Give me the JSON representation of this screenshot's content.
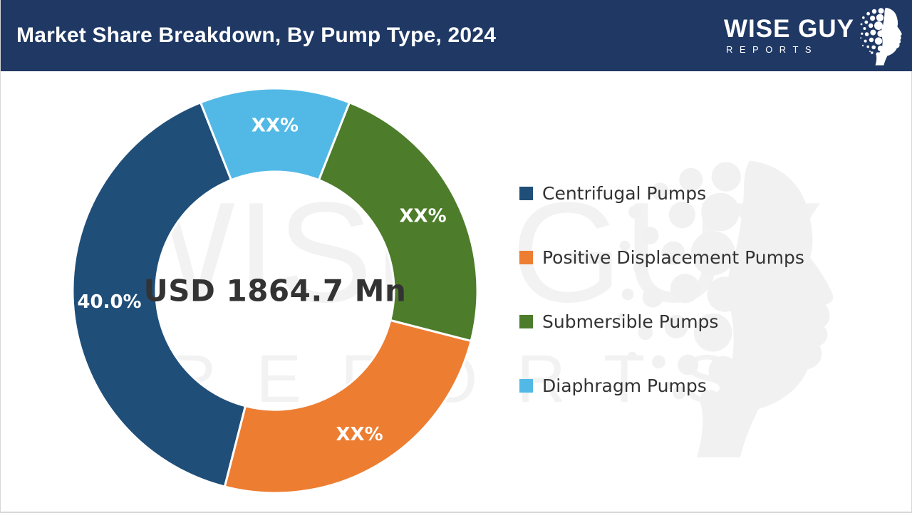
{
  "header": {
    "title": "Market Share Breakdown, By Pump Type, 2024",
    "logo": {
      "line1": "WISE GUY",
      "line2": "REPORTS"
    }
  },
  "watermark": {
    "line1": "WISE GUY",
    "line2": "REPORTS"
  },
  "colors": {
    "header_bg": "#1F3864",
    "title_text": "#FFFFFF",
    "body_text": "#333333",
    "watermark": "#F2F2F2",
    "page_border": "#D6D6D6"
  },
  "chart_data": {
    "type": "pie",
    "variant": "donut",
    "title": "Market Share Breakdown, By Pump Type, 2024",
    "center_label": "USD 1864.7 Mn",
    "slices": [
      {
        "label": "Centrifugal Pumps",
        "value_pct": 40.0,
        "display": "40.0%",
        "color": "#1F4E79"
      },
      {
        "label": "Positive Displacement Pumps",
        "value_pct": 25.0,
        "display": "XX%",
        "color": "#ED7D31"
      },
      {
        "label": "Submersible Pumps",
        "value_pct": 23.0,
        "display": "XX%",
        "color": "#4D7C2A"
      },
      {
        "label": "Diaphragm Pumps",
        "value_pct": 12.0,
        "display": "XX%",
        "color": "#52B9E6"
      }
    ],
    "layout": {
      "legend_position": "right",
      "start_angle_deg": 194.4,
      "draw_order": [
        0,
        3,
        2,
        1
      ],
      "center": [
        385,
        308
      ],
      "outer_radius": 284,
      "inner_radius": 167,
      "label_radius": 233,
      "grid": false
    }
  }
}
